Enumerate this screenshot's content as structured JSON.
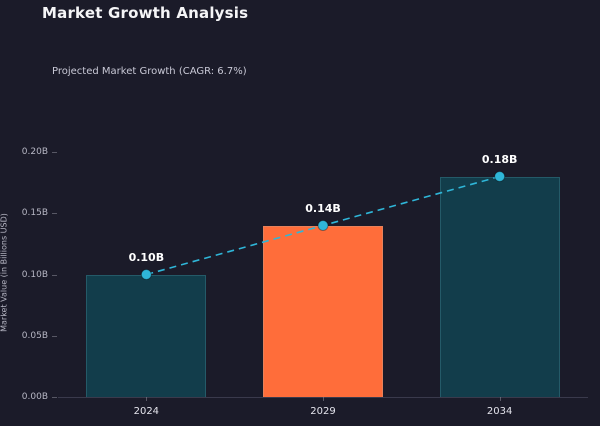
{
  "page": {
    "title": "Market Growth Analysis",
    "subtitle": "Projected Market Growth (CAGR: 6.7%)"
  },
  "colors": {
    "background": "#1b1b29",
    "bar_teal": "#123d4b",
    "bar_orange": "#ff6d3a",
    "trend_line": "#2fb6d8",
    "marker": "#2fb6d8",
    "title_text": "#f5f5f7",
    "muted_text": "#c9c9d6",
    "axis_text": "#b7b7c4"
  },
  "chart_data": {
    "type": "bar",
    "title": "Market Growth Analysis",
    "subtitle": "Projected Market Growth (CAGR: 6.7%)",
    "categories": [
      "2024",
      "2029",
      "2034"
    ],
    "values": [
      0.1,
      0.14,
      0.18
    ],
    "value_labels": [
      "0.10B",
      "0.14B",
      "0.18B"
    ],
    "bar_colors": [
      "#123d4b",
      "#ff6d3a",
      "#123d4b"
    ],
    "xlabel": "",
    "ylabel": "Market Value (in Billions USD)",
    "ylim": [
      0,
      0.2
    ],
    "yticks": [
      0,
      0.05,
      0.1,
      0.15,
      0.2
    ],
    "ytick_labels": [
      "0.00B",
      "0.05B",
      "0.10B",
      "0.15B",
      "0.20B"
    ],
    "grid": false,
    "legend": false,
    "overlay_line": {
      "type": "line",
      "style": "dashed",
      "color": "#2fb6d8",
      "marker_color": "#2fb6d8",
      "values": [
        0.1,
        0.14,
        0.18
      ]
    }
  }
}
